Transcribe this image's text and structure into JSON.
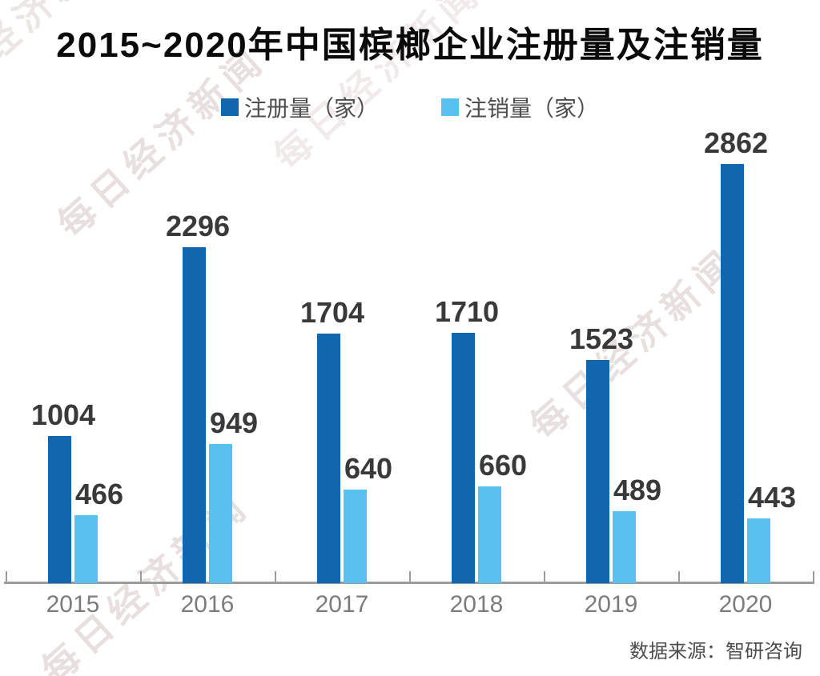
{
  "title": "2015~2020年中国槟榔企业注册量及注销量",
  "legend": {
    "items": [
      {
        "label": "注册量（家）",
        "color": "#1266ae"
      },
      {
        "label": "注销量（家）",
        "color": "#58c1ee"
      }
    ]
  },
  "watermark": {
    "text": "每日经济新闻"
  },
  "source": "数据来源：智研咨询",
  "colors": {
    "registration": "#1266ae",
    "deregistration": "#58c1ee",
    "axis": "#9b9b9b",
    "value_label": "#393939",
    "year_label": "#7c7c7c",
    "watermark": "#d8cdc9"
  },
  "chart_data": {
    "type": "bar",
    "title": "2015~2020年中国槟榔企业注册量及注销量",
    "categories": [
      "2015",
      "2016",
      "2017",
      "2018",
      "2019",
      "2020"
    ],
    "series": [
      {
        "name": "注册量（家）",
        "color": "#1266ae",
        "values": [
          1004,
          2296,
          1704,
          1710,
          1523,
          2862
        ]
      },
      {
        "name": "注销量（家）",
        "color": "#58c1ee",
        "values": [
          466,
          949,
          640,
          660,
          489,
          443
        ]
      }
    ],
    "xlabel": "",
    "ylabel": "",
    "ylim": [
      0,
      3000
    ],
    "grid": false,
    "value_labels": true,
    "legend_position": "top",
    "source": "数据来源：智研咨询"
  }
}
